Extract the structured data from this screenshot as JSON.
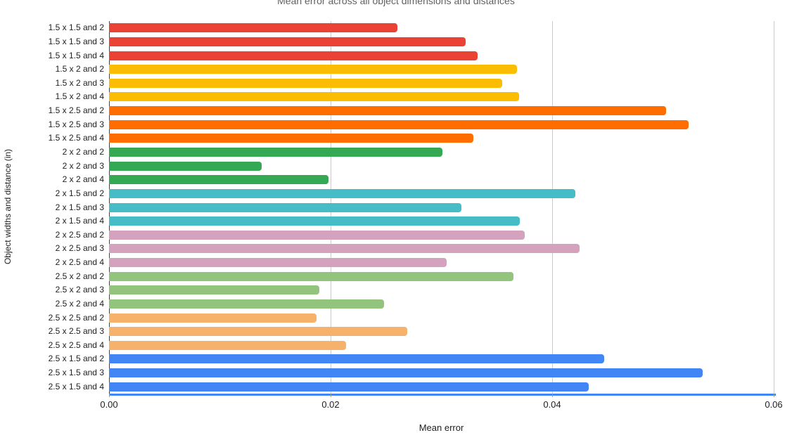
{
  "chart_data": {
    "type": "bar",
    "orientation": "horizontal",
    "title": "Mean error across all object dimensions and distances",
    "xlabel": "Mean error",
    "ylabel": "Object widths and distance (in)",
    "xlim": [
      0,
      0.06
    ],
    "xticks": [
      "0.00",
      "0.02",
      "0.04",
      "0.06"
    ],
    "xtick_values": [
      0,
      0.02,
      0.04,
      0.06
    ],
    "grid": true,
    "legend": "none",
    "categories": [
      "1.5 x 1.5 and 2",
      "1.5 x 1.5 and 3",
      "1.5 x 1.5 and 4",
      "1.5 x 2 and 2",
      "1.5 x 2 and 3",
      "1.5 x 2 and 4",
      "1.5 x 2.5 and 2",
      "1.5 x 2.5 and 3",
      "1.5 x 2.5 and 4",
      "2 x 2 and 2",
      "2 x 2 and 3",
      "2 x 2 and 4",
      "2 x 1.5 and 2",
      "2 x 1.5 and 3",
      "2 x 1.5 and 4",
      "2 x 2.5 and 2",
      "2 x 2.5 and 3",
      "2 x 2.5 and 4",
      "2.5 x 2 and 2",
      "2.5 x 2 and 3",
      "2.5 x 2 and 4",
      "2.5 x 2.5 and 2",
      "2.5 x 2.5 and 3",
      "2.5 x 2.5 and 4",
      "2.5 x 1.5 and 2",
      "2.5 x 1.5 and 3",
      "2.5 x 1.5 and 4"
    ],
    "values": [
      0.026,
      0.0322,
      0.0333,
      0.0368,
      0.0355,
      0.037,
      0.0503,
      0.0523,
      0.0329,
      0.0301,
      0.0138,
      0.0198,
      0.0421,
      0.0318,
      0.0371,
      0.0375,
      0.0425,
      0.0305,
      0.0365,
      0.019,
      0.0248,
      0.0187,
      0.0269,
      0.0214,
      0.0447,
      0.0536,
      0.0433
    ],
    "colors": [
      "#EA4335",
      "#EA4335",
      "#EA4335",
      "#FBBC04",
      "#FBBC04",
      "#FBBC04",
      "#FF6D01",
      "#FF6D01",
      "#FF6D01",
      "#34A853",
      "#34A853",
      "#34A853",
      "#46BDC6",
      "#46BDC6",
      "#46BDC6",
      "#D5A2BD",
      "#D5A2BD",
      "#D5A2BD",
      "#93C47D",
      "#93C47D",
      "#93C47D",
      "#F6B26B",
      "#F6B26B",
      "#F6B26B",
      "#4285F4",
      "#4285F4",
      "#4285F4"
    ],
    "accent_colors": {
      "baseline_axis": "#4285f4",
      "gridline": "#cccccc",
      "title_text": "#616161",
      "label_text": "#212121"
    }
  }
}
